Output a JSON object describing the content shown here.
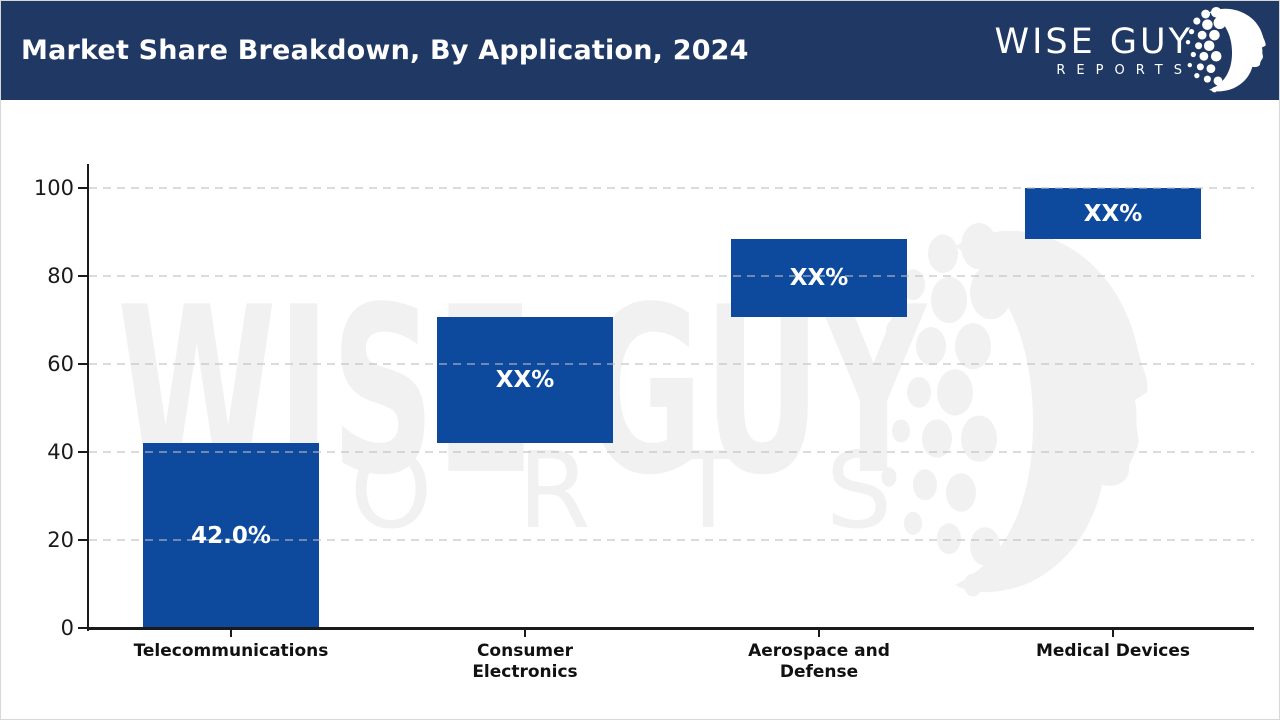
{
  "page": {
    "bg_color": "#ffffff",
    "border_color": "#d8d8d8"
  },
  "header": {
    "bg_color": "#1f3864",
    "title": "Market Share Breakdown, By Application, 2024",
    "logo": {
      "name": "WISE GUY",
      "sub": "REPORTS"
    }
  },
  "watermark": {
    "line1": "WISE GUY",
    "line2": "P O R T S",
    "color": "#f1f1f1"
  },
  "chart_data": {
    "type": "bar",
    "variant": "waterfall",
    "title": "Market Share Breakdown, By Application, 2024",
    "unit": "percent market share",
    "categories": [
      "Telecommunications",
      "Consumer\nElectronics",
      "Aerospace and\nDefense",
      "Medical Devices"
    ],
    "segments": [
      {
        "category": "Telecommunications",
        "start": 0,
        "end": 42.0,
        "value": 42.0,
        "label": "42.0%"
      },
      {
        "category": "Consumer Electronics",
        "start": 42.0,
        "end": 70.7,
        "value": 28.7,
        "label": "XX%"
      },
      {
        "category": "Aerospace and Defense",
        "start": 70.7,
        "end": 88.4,
        "value": 17.7,
        "label": "XX%"
      },
      {
        "category": "Medical Devices",
        "start": 88.4,
        "end": 100.0,
        "value": 11.6,
        "label": "XX%"
      }
    ],
    "bar_color": "#0d4a9e",
    "label_color": "#ffffff",
    "y_ticks": [
      0,
      20,
      40,
      60,
      80,
      100
    ],
    "ylim": [
      0,
      105
    ],
    "grid": {
      "axis": "y",
      "style": "dashed",
      "color": "#dcdcdc",
      "drawn_over_bars": true
    },
    "legend": "none",
    "axis_color": "#1a1a1a"
  }
}
